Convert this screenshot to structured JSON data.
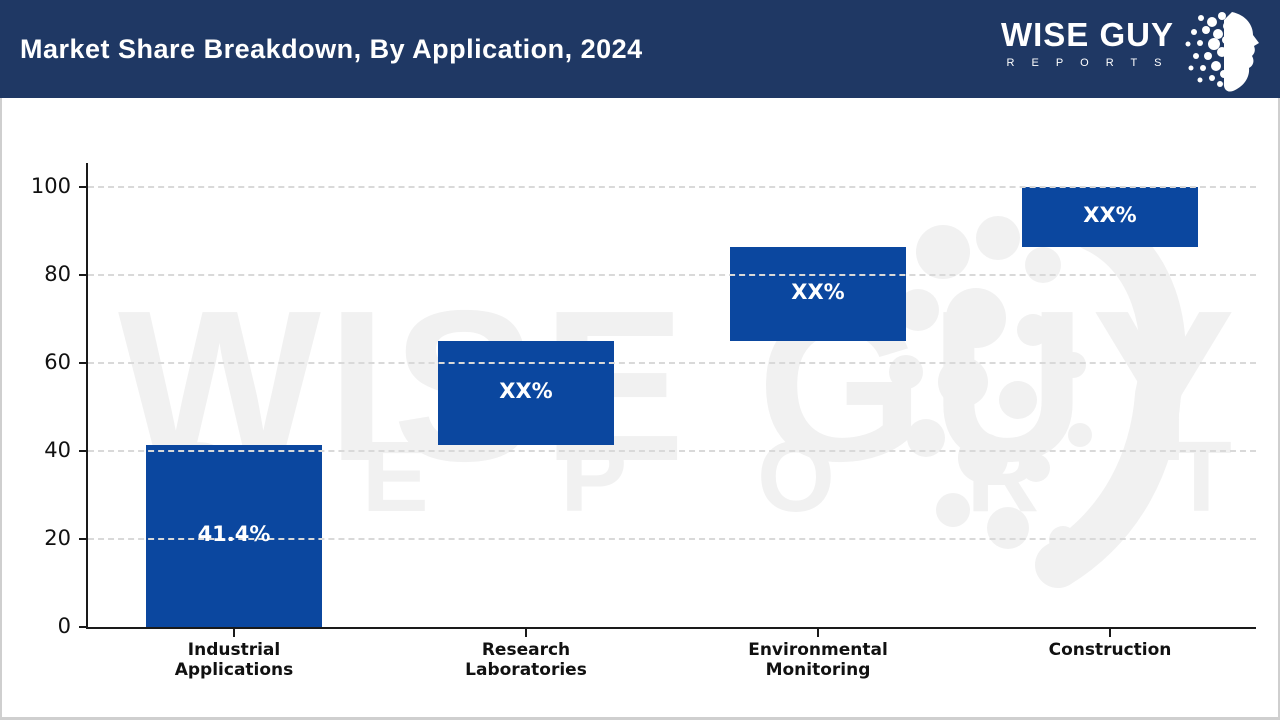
{
  "header": {
    "title": "Market Share Breakdown, By Application, 2024",
    "bg_color": "#1f3864",
    "logo": {
      "line1": "WISE GUY",
      "line2": "R E P O R T S",
      "head_icon": "dotted-head-profile"
    }
  },
  "watermark": {
    "line1": "WISE GUY",
    "line2": "R E P O R T S",
    "head_icon": "dotted-head-profile"
  },
  "chart_data": {
    "type": "bar",
    "variant": "waterfall",
    "title": "Market Share Breakdown, By Application, 2024",
    "xlabel": "",
    "ylabel": "",
    "ylim": [
      0,
      100
    ],
    "yticks": [
      0,
      20,
      40,
      60,
      80,
      100
    ],
    "grid": "horizontal-dashed",
    "legend": "none",
    "bar_color": "#0b479f",
    "value_label_color": "#ffffff",
    "categories": [
      "Industrial\nApplications",
      "Research\nLaboratories",
      "Environmental\nMonitoring",
      "Construction"
    ],
    "series": [
      {
        "name": "Market Share",
        "segments": [
          {
            "category": "Industrial Applications",
            "start": 0,
            "end": 41.4,
            "label": "41.4%"
          },
          {
            "category": "Research Laboratories",
            "start": 41.4,
            "end": 65.0,
            "label": "XX%"
          },
          {
            "category": "Environmental Monitoring",
            "start": 65.0,
            "end": 86.4,
            "label": "XX%"
          },
          {
            "category": "Construction",
            "start": 86.4,
            "end": 100.0,
            "label": "XX%"
          }
        ]
      }
    ]
  }
}
